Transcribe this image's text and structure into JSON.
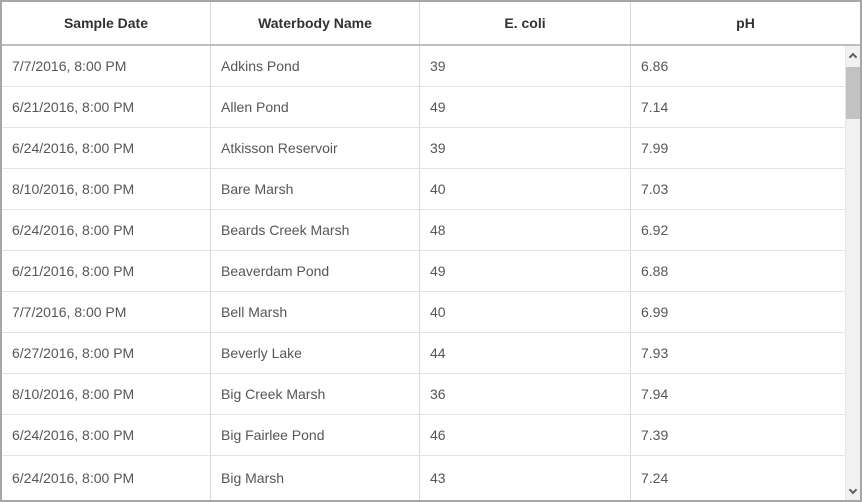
{
  "table": {
    "columns": [
      {
        "key": "sample_date",
        "label": "Sample Date"
      },
      {
        "key": "waterbody",
        "label": "Waterbody Name"
      },
      {
        "key": "ecoli",
        "label": "E. coli"
      },
      {
        "key": "ph",
        "label": "pH"
      }
    ],
    "rows": [
      {
        "sample_date": "7/7/2016, 8:00 PM",
        "waterbody": "Adkins Pond",
        "ecoli": "39",
        "ph": "6.86"
      },
      {
        "sample_date": "6/21/2016, 8:00 PM",
        "waterbody": "Allen Pond",
        "ecoli": "49",
        "ph": "7.14"
      },
      {
        "sample_date": "6/24/2016, 8:00 PM",
        "waterbody": "Atkisson Reservoir",
        "ecoli": "39",
        "ph": "7.99"
      },
      {
        "sample_date": "8/10/2016, 8:00 PM",
        "waterbody": "Bare Marsh",
        "ecoli": "40",
        "ph": "7.03"
      },
      {
        "sample_date": "6/24/2016, 8:00 PM",
        "waterbody": "Beards Creek Marsh",
        "ecoli": "48",
        "ph": "6.92"
      },
      {
        "sample_date": "6/21/2016, 8:00 PM",
        "waterbody": "Beaverdam Pond",
        "ecoli": "49",
        "ph": "6.88"
      },
      {
        "sample_date": "7/7/2016, 8:00 PM",
        "waterbody": "Bell Marsh",
        "ecoli": "40",
        "ph": "6.99"
      },
      {
        "sample_date": "6/27/2016, 8:00 PM",
        "waterbody": "Beverly Lake",
        "ecoli": "44",
        "ph": "7.93"
      },
      {
        "sample_date": "8/10/2016, 8:00 PM",
        "waterbody": "Big Creek Marsh",
        "ecoli": "36",
        "ph": "7.94"
      },
      {
        "sample_date": "6/24/2016, 8:00 PM",
        "waterbody": "Big Fairlee Pond",
        "ecoli": "46",
        "ph": "7.39"
      },
      {
        "sample_date": "6/24/2016, 8:00 PM",
        "waterbody": "Big Marsh",
        "ecoli": "43",
        "ph": "7.24"
      }
    ]
  },
  "scrollbar": {
    "up_icon": "chevron-up",
    "down_icon": "chevron-down"
  },
  "colors": {
    "outer_border": "#a6a6a6",
    "header_text": "#323232",
    "header_bottom_border": "#bdbdbd",
    "cell_text": "#565656",
    "column_divider": "#d8d8d8",
    "row_separator": "#e3e3e3",
    "scroll_track": "#f1f1f1",
    "scroll_thumb": "#c2c2c2",
    "chevron": "#5f5f5f"
  }
}
